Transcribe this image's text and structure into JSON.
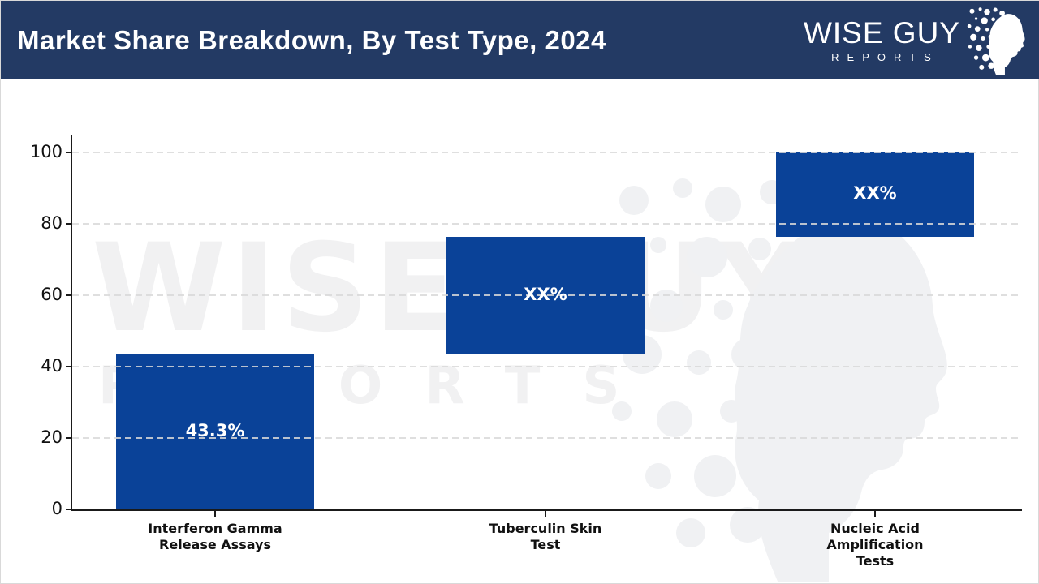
{
  "header": {
    "title": "Market Share Breakdown, By Test Type, 2024",
    "logo": {
      "name": "Wise Guy Reports",
      "line1": "WISE GUY",
      "line2": "REPORTS"
    }
  },
  "watermark": {
    "line1": "WISE GUY",
    "line2": "REPORTS"
  },
  "chart_data": {
    "type": "bar",
    "subtype": "stacked-waterfall",
    "title": "Market Share Breakdown, By Test Type, 2024",
    "categories": [
      "Interferon Gamma Release Assays",
      "Tuberculin Skin Test",
      "Nucleic Acid Amplification Tests"
    ],
    "category_label_lines": [
      [
        "Interferon Gamma",
        "Release Assays"
      ],
      [
        "Tuberculin Skin",
        "Test"
      ],
      [
        "Nucleic Acid",
        "Amplification",
        "Tests"
      ]
    ],
    "bars": [
      {
        "category": "Interferon Gamma Release Assays",
        "label": "43.3%",
        "start": 0,
        "end": 43.3
      },
      {
        "category": "Tuberculin Skin Test",
        "label": "XX%",
        "start": 43.3,
        "end": 76.3
      },
      {
        "category": "Nucleic Acid Amplification Tests",
        "label": "XX%",
        "start": 76.3,
        "end": 100
      }
    ],
    "xlabel": "",
    "ylabel": "",
    "yticks": [
      0,
      20,
      40,
      60,
      80,
      100
    ],
    "ylim": [
      0,
      105
    ],
    "grid": "horizontal-dashed",
    "legend": "none",
    "colors": {
      "bar": "#0a4298",
      "bar_label": "#ffffff",
      "header_bg": "#233a64",
      "header_text": "#ffffff",
      "grid": "#d9d9d9",
      "axis": "#1a1a1a",
      "tick_text": "#111111",
      "watermark": "#f1f1f2"
    }
  }
}
